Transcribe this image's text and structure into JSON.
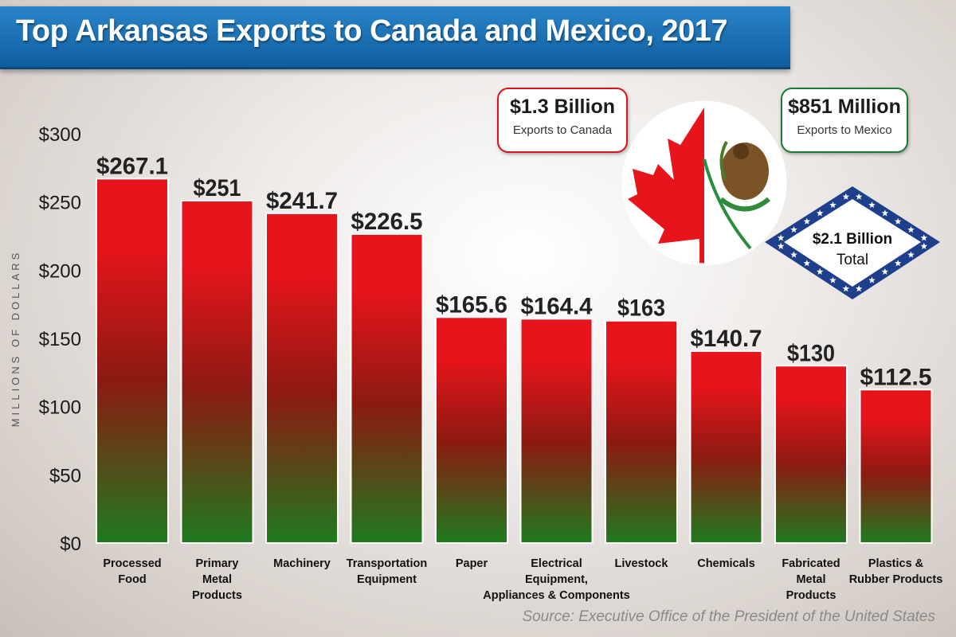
{
  "title": "Top Arkansas Exports to Canada and Mexico, 2017",
  "source": "Source: Executive Office of the President of the United States",
  "colors": {
    "bar_top": "#e8141b",
    "bar_mid": "#8c1a12",
    "bar_bottom": "#1f7a1f",
    "title_bar": "#1a6fb3",
    "canada_border": "#d7141b",
    "mexico_border": "#1a7a3a"
  },
  "callouts": {
    "canada": {
      "amount": "$1.3 Billion",
      "label": "Exports to Canada"
    },
    "mexico": {
      "amount": "$851 Million",
      "label": "Exports to Mexico"
    },
    "total": {
      "amount": "$2.1 Billion",
      "label": "Total"
    }
  },
  "icons": {
    "flags": "canada-mexico-split-flag-icon",
    "badge": "arkansas-diamond-badge-icon"
  },
  "chart_data": {
    "type": "bar",
    "ylabel": "MILLIONS OF DOLLARS",
    "ylim": [
      0,
      300
    ],
    "yticks": [
      0,
      50,
      100,
      150,
      200,
      250,
      300
    ],
    "ytick_labels": [
      "$0",
      "$50",
      "$100",
      "$150",
      "$200",
      "$250",
      "$300"
    ],
    "grid": false,
    "categories": [
      [
        "Processed",
        "Food"
      ],
      [
        "Primary",
        "Metal",
        "Products"
      ],
      [
        "Machinery"
      ],
      [
        "Transportation",
        "Equipment"
      ],
      [
        "Paper"
      ],
      [
        "Electrical",
        "Equipment,",
        "Appliances & Components"
      ],
      [
        "Livestock"
      ],
      [
        "Chemicals"
      ],
      [
        "Fabricated",
        "Metal",
        "Products"
      ],
      [
        "Plastics &",
        "Rubber Products"
      ]
    ],
    "values": [
      267.1,
      251,
      241.7,
      226.5,
      165.6,
      164.4,
      163,
      140.7,
      130,
      112.5
    ],
    "value_labels": [
      "$267.1",
      "$251",
      "$241.7",
      "$226.5",
      "$165.6",
      "$164.4",
      "$163",
      "$140.7",
      "$130",
      "$112.5"
    ]
  }
}
